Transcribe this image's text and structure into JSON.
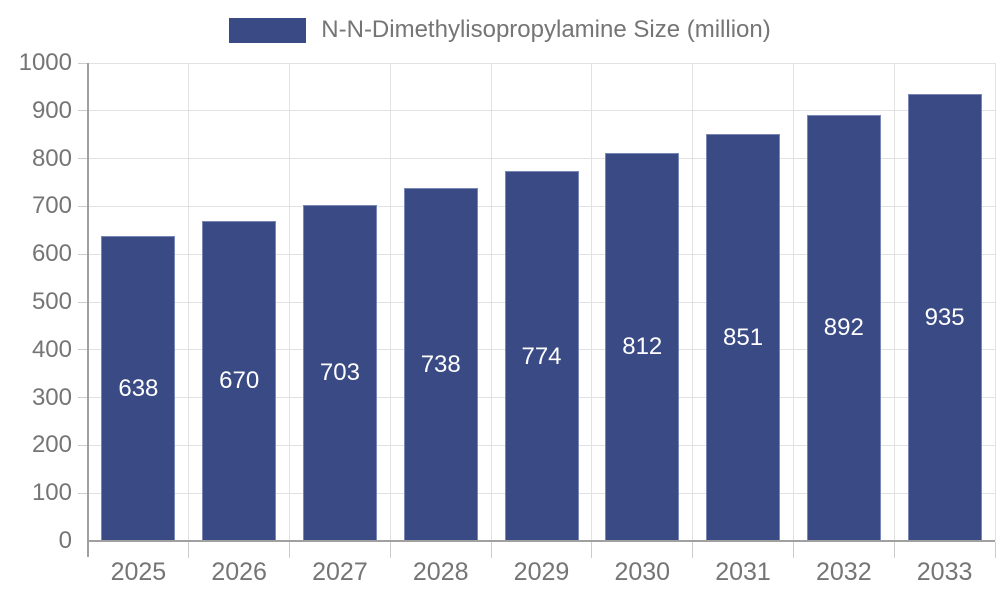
{
  "legend": {
    "label": "N-N-Dimethylisopropylamine Size (million)"
  },
  "colors": {
    "bar": "#3a4a85",
    "axis_text": "#757575",
    "gridline": "#e2e2e2",
    "axis_line": "#a0a0a0",
    "value_label": "#ffffff",
    "background": "#ffffff"
  },
  "chart_data": {
    "type": "bar",
    "title": "N-N-Dimethylisopropylamine Size (million)",
    "categories": [
      "2025",
      "2026",
      "2027",
      "2028",
      "2029",
      "2030",
      "2031",
      "2032",
      "2033"
    ],
    "values": [
      638,
      670,
      703,
      738,
      774,
      812,
      851,
      892,
      935
    ],
    "xlabel": "",
    "ylabel": "",
    "ylim": [
      0,
      1000
    ],
    "ytick_step": 100,
    "yticks": [
      0,
      100,
      200,
      300,
      400,
      500,
      600,
      700,
      800,
      900,
      1000
    ],
    "grid": true,
    "legend_position": "top-center",
    "value_labels": "inside-center"
  }
}
